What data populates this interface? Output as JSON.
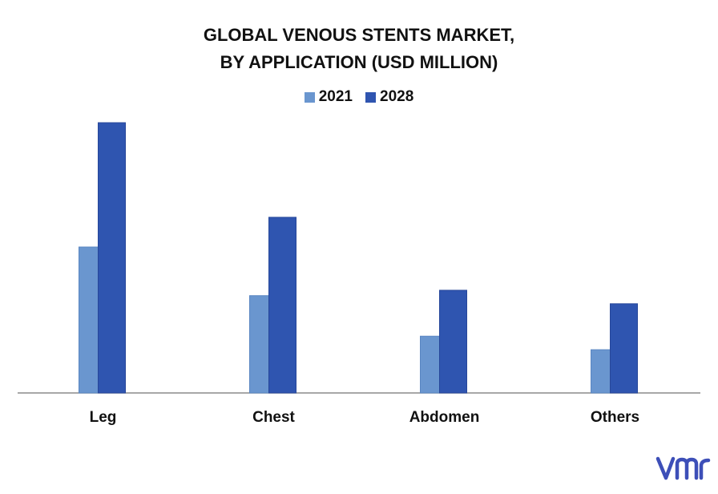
{
  "chart_data": {
    "type": "bar",
    "title_line1": "GLOBAL VENOUS STENTS MARKET,",
    "title_line2": "BY APPLICATION (USD MILLION)",
    "categories": [
      "Leg",
      "Chest",
      "Abdomen",
      "Others"
    ],
    "series": [
      {
        "name": "2021",
        "color": "#6a96cf",
        "values": [
          54,
          36,
          21,
          16
        ]
      },
      {
        "name": "2028",
        "color": "#2f55b0",
        "values": [
          100,
          65,
          38,
          33
        ]
      }
    ],
    "ylim": [
      0,
      100
    ],
    "grid": false,
    "legend_position": "top-center",
    "xlabel": "",
    "ylabel": ""
  },
  "logo": {
    "icon": "vmr-logo-icon",
    "color": "#3d4fb8"
  }
}
